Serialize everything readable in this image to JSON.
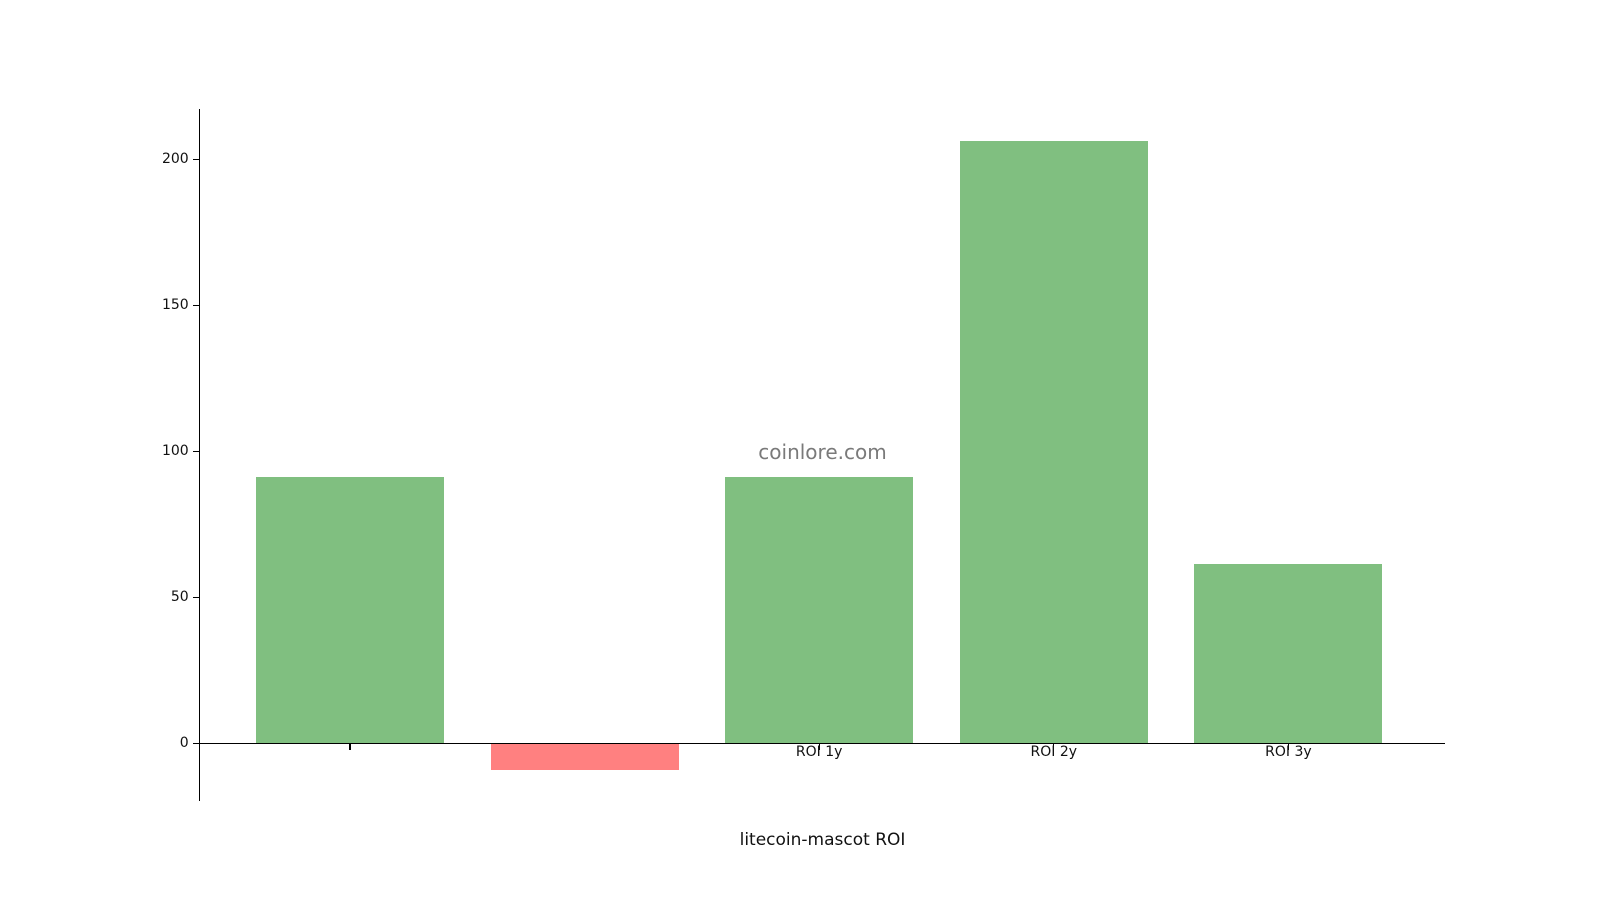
{
  "chart_data": {
    "type": "bar",
    "title": "",
    "categories": [
      "",
      "",
      "ROI 1y",
      "ROI 2y",
      "ROI 3y"
    ],
    "values": [
      91,
      -9,
      91,
      206,
      61
    ],
    "bar_colors": [
      "#80BF80",
      "#FF8080",
      "#80BF80",
      "#80BF80",
      "#80BF80"
    ],
    "positive_color": "#80BF80",
    "negative_color": "#FF8080",
    "xlabel": "litecoin-mascot ROI",
    "ylabel": "",
    "yticks": [
      0,
      50,
      100,
      150,
      200
    ],
    "ylim": [
      -20,
      217
    ],
    "grid": false,
    "legend": "none",
    "watermark": "coinlore.com",
    "axis_color": "#000000",
    "text_color": "#111111",
    "watermark_color": "#7a7a7a",
    "background_color": "#ffffff"
  }
}
